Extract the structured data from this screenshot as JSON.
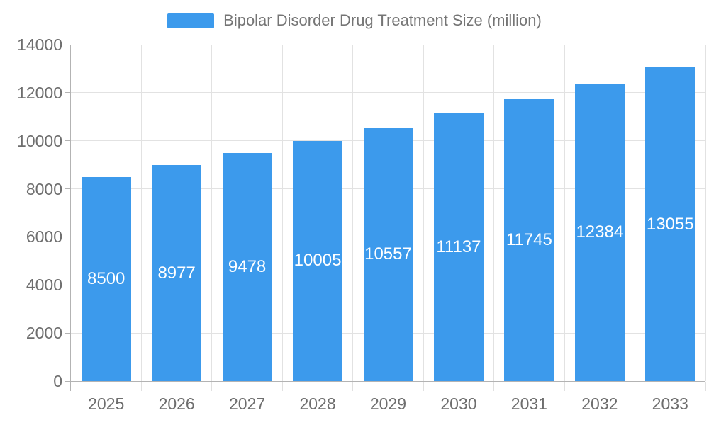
{
  "chart_data": {
    "type": "bar",
    "legend_entries": [
      "Bipolar Disorder Drug Treatment Size (million)"
    ],
    "categories": [
      "2025",
      "2026",
      "2027",
      "2028",
      "2029",
      "2030",
      "2031",
      "2032",
      "2033"
    ],
    "series": [
      {
        "name": "Bipolar Disorder Drug Treatment Size (million)",
        "values": [
          8500,
          8977,
          9478,
          10005,
          10557,
          11137,
          11745,
          12384,
          13055
        ]
      }
    ],
    "value_labels": [
      "8500",
      "8977",
      "9478",
      "10005",
      "10557",
      "11137",
      "11745",
      "12384",
      "13055"
    ],
    "ylim": [
      0,
      14000
    ],
    "ytick_step": 2000,
    "ytick_labels": [
      "0",
      "2000",
      "4000",
      "6000",
      "8000",
      "10000",
      "12000",
      "14000"
    ],
    "xlabel": "",
    "ylabel": "",
    "grid": true,
    "legend_position": "top",
    "colors": {
      "bar": "#3C9AEC",
      "bar_label": "#FFFFFF",
      "axis_text": "#6E6E6E",
      "legend_text": "#757575",
      "grid_line": "#E2E2E2",
      "axis_line": "#B3B3B3",
      "background": "#FFFFFF"
    }
  }
}
